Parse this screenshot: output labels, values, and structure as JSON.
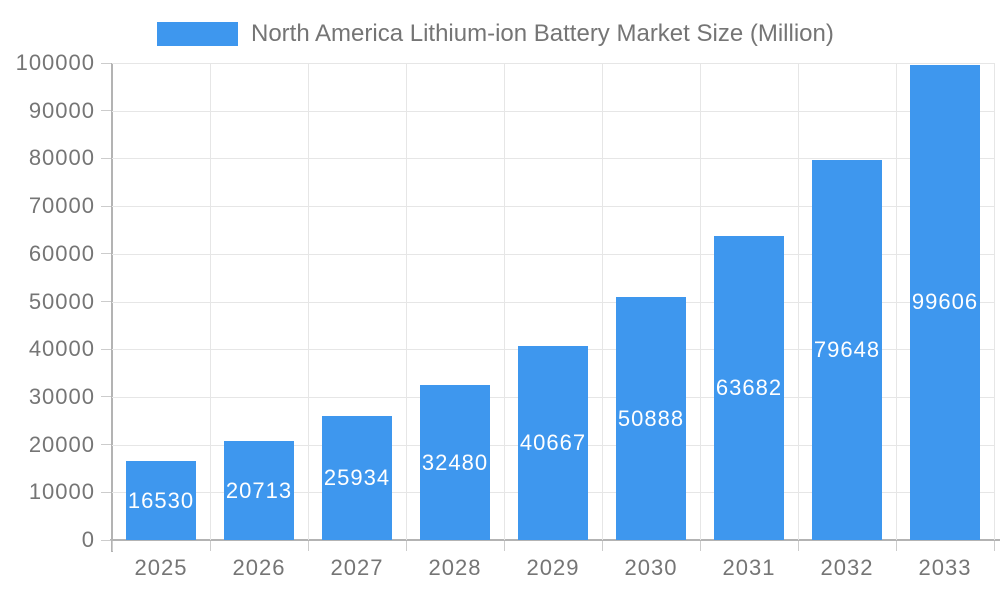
{
  "chart_data": {
    "type": "bar",
    "title": "North America Lithium-ion Battery Market Size (Million)",
    "legend_position": "top",
    "categories": [
      "2025",
      "2026",
      "2027",
      "2028",
      "2029",
      "2030",
      "2031",
      "2032",
      "2033"
    ],
    "values": [
      16530,
      20713,
      25934,
      32480,
      40667,
      50888,
      63682,
      79648,
      99606
    ],
    "xlabel": "",
    "ylabel": "",
    "ylim": [
      0,
      100000
    ],
    "ytick_step": 10000,
    "yticks": [
      0,
      10000,
      20000,
      30000,
      40000,
      50000,
      60000,
      70000,
      80000,
      90000,
      100000
    ],
    "grid": true,
    "colors": {
      "bar": "#3e97ee",
      "axis_text": "#757575",
      "value_label_text": "#ffffff",
      "gridline": "#e6e6e6",
      "axis_line": "#b3b3b3"
    }
  }
}
